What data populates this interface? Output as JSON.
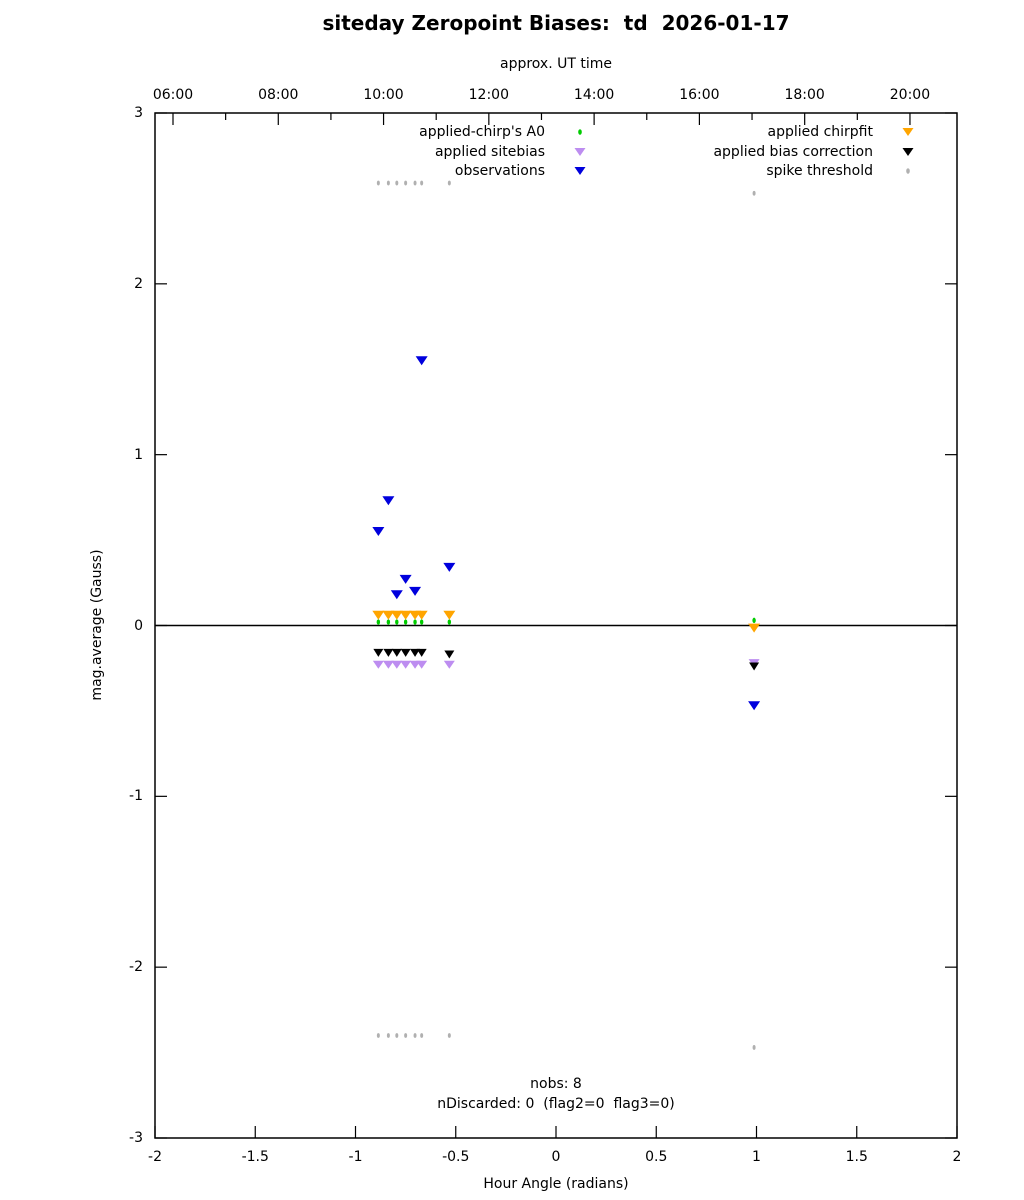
{
  "annotations": {
    "nobs": "nobs: 8",
    "ndiscarded": "nDiscarded: 0  (flag2=0  flag3=0)"
  },
  "chart_data": {
    "type": "scatter",
    "title": "siteday Zeropoint Biases:  td  2026-01-17",
    "xlabel": "Hour Angle (radians)",
    "ylabel": "mag.average (Gauss)",
    "xlim": [
      -2,
      2
    ],
    "ylim": [
      -3,
      3
    ],
    "grid": false,
    "hline_y": 0,
    "x_axis": {
      "tick_values": [
        -2,
        -1.5,
        -1,
        -0.5,
        0,
        0.5,
        1,
        1.5,
        2
      ],
      "tick_labels": [
        "-2",
        "-1.5",
        "-1",
        "-0.5",
        "0",
        "0.5",
        "1",
        "1.5",
        "2"
      ]
    },
    "y_axis": {
      "tick_values": [
        3,
        2,
        1,
        0,
        -1,
        -2,
        -3
      ],
      "tick_labels": [
        "3",
        "2",
        "1",
        "0",
        "-1",
        "-2",
        "-3"
      ]
    },
    "x2_axis": {
      "label": "approx. UT time",
      "tick_labels": [
        "06:00",
        "08:00",
        "10:00",
        "12:00",
        "14:00",
        "16:00",
        "18:00",
        "20:00"
      ],
      "minor_ticks_between_labels": 1
    },
    "legend": {
      "position": "top-inside-two-columns",
      "left": [
        {
          "series": "applied-chirps-a0",
          "label": "applied-chirp's A0"
        },
        {
          "series": "applied-sitebias",
          "label": "applied sitebias"
        },
        {
          "series": "observations",
          "label": "observations"
        }
      ],
      "right": [
        {
          "series": "applied-chirpfit",
          "label": "applied chirpfit"
        },
        {
          "series": "applied-bias-correction",
          "label": "applied bias correction"
        },
        {
          "series": "spike-threshold",
          "label": "spike threshold"
        }
      ]
    },
    "series": [
      {
        "id": "applied-chirps-a0",
        "name": "applied-chirp's A0",
        "marker": "dot",
        "color": "#00cc00",
        "x": [
          -0.886,
          -0.836,
          -0.794,
          -0.75,
          -0.703,
          -0.67,
          -0.532,
          0.988
        ],
        "y": [
          0.02,
          0.02,
          0.02,
          0.02,
          0.02,
          0.02,
          0.02,
          0.03
        ]
      },
      {
        "id": "applied-chirpfit",
        "name": "applied chirpfit",
        "marker": "triangle-down",
        "color": "#ffa500",
        "x": [
          -0.886,
          -0.836,
          -0.794,
          -0.75,
          -0.703,
          -0.67,
          -0.532,
          0.988
        ],
        "y": [
          0.06,
          0.06,
          0.06,
          0.06,
          0.06,
          0.06,
          0.06,
          -0.015
        ]
      },
      {
        "id": "applied-sitebias",
        "name": "applied sitebias",
        "marker": "triangle-down",
        "color": "#bd8df0",
        "x": [
          -0.886,
          -0.836,
          -0.794,
          -0.75,
          -0.703,
          -0.67,
          -0.532,
          0.988
        ],
        "y": [
          -0.23,
          -0.23,
          -0.23,
          -0.23,
          -0.23,
          -0.23,
          -0.23,
          -0.22
        ]
      },
      {
        "id": "applied-bias-correction",
        "name": "applied bias correction",
        "marker": "triangle-down",
        "color": "#000000",
        "x": [
          -0.886,
          -0.836,
          -0.794,
          -0.75,
          -0.703,
          -0.67,
          -0.532,
          0.988
        ],
        "y": [
          -0.16,
          -0.16,
          -0.16,
          -0.16,
          -0.16,
          -0.16,
          -0.17,
          -0.24
        ]
      },
      {
        "id": "observations",
        "name": "observations",
        "marker": "triangle-down",
        "color": "#0000dd",
        "x": [
          -0.886,
          -0.836,
          -0.794,
          -0.75,
          -0.703,
          -0.67,
          -0.532,
          0.988
        ],
        "y": [
          0.55,
          0.73,
          0.18,
          0.27,
          0.2,
          1.55,
          0.34,
          -0.47
        ]
      },
      {
        "id": "spike-threshold",
        "name": "spike threshold",
        "marker": "dot",
        "color": "#b0b0b0",
        "x": [
          -0.886,
          -0.836,
          -0.794,
          -0.75,
          -0.703,
          -0.67,
          -0.532,
          0.988,
          -0.886,
          -0.836,
          -0.794,
          -0.75,
          -0.703,
          -0.67,
          -0.532,
          0.988
        ],
        "y": [
          2.59,
          2.59,
          2.59,
          2.59,
          2.59,
          2.59,
          2.59,
          2.53,
          -2.4,
          -2.4,
          -2.4,
          -2.4,
          -2.4,
          -2.4,
          -2.4,
          -2.47
        ]
      }
    ]
  }
}
